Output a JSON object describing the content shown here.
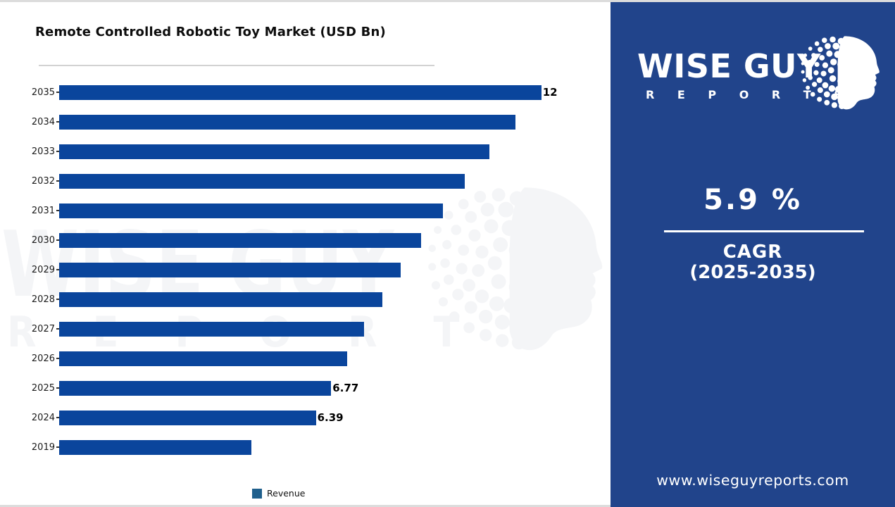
{
  "chart": {
    "title": "Remote Controlled Robotic Toy Market (USD Bn)",
    "bar_color": "#0A459C",
    "legend": {
      "label": "Revenue",
      "swatch_color": "#1F5F8C"
    },
    "chart_data": {
      "type": "bar",
      "orientation": "horizontal",
      "title": "Remote Controlled Robotic Toy Market (USD Bn)",
      "xlabel": "",
      "ylabel": "",
      "xlim": [
        0,
        13.6
      ],
      "grid": false,
      "legend_entries": [
        "Revenue"
      ],
      "legend_position": "bottom-center",
      "categories_top_to_bottom": [
        "2035",
        "2034",
        "2033",
        "2032",
        "2031",
        "2030",
        "2029",
        "2028",
        "2027",
        "2026",
        "2025",
        "2024",
        "2019"
      ],
      "values": [
        12,
        11.35,
        10.7,
        10.09,
        9.55,
        9.0,
        8.5,
        8.04,
        7.59,
        7.17,
        6.77,
        6.39,
        4.79
      ],
      "value_labels": {
        "2035": "12",
        "2025": "6.77",
        "2024": "6.39"
      }
    }
  },
  "watermark": {
    "line1": "WISE GUY",
    "line2": "R E P O R T S"
  },
  "sidebar": {
    "background_color": "#21448B",
    "logo": {
      "line1": "WISE GUY",
      "line2": "R E P O R T S"
    },
    "cagr_value": "5.9 %",
    "cagr_label": "CAGR",
    "cagr_range": "(2025-2035)",
    "website": "www.wiseguyreports.com"
  }
}
